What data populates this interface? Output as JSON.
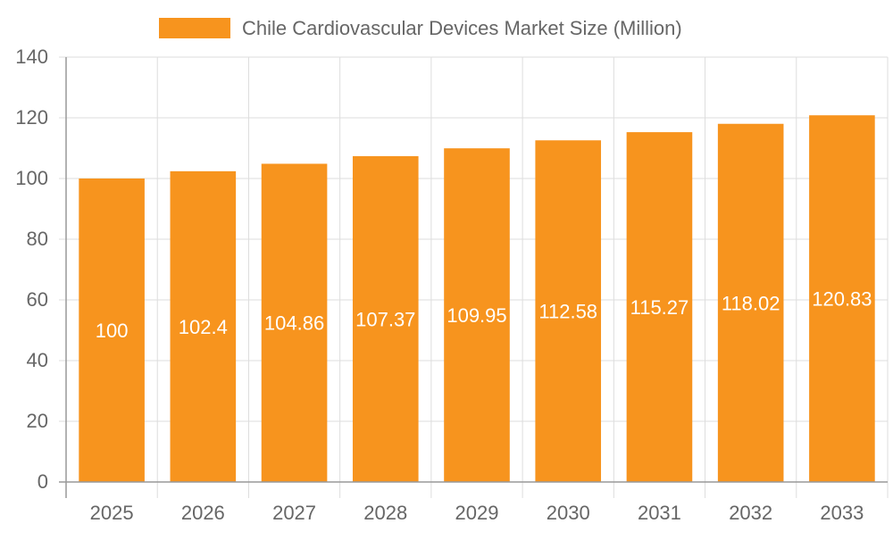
{
  "chart_data": {
    "type": "bar",
    "title": "",
    "xlabel": "",
    "ylabel": "",
    "categories": [
      "2025",
      "2026",
      "2027",
      "2028",
      "2029",
      "2030",
      "2031",
      "2032",
      "2033"
    ],
    "series": [
      {
        "name": "Chile Cardiovascular Devices Market Size (Million)",
        "values": [
          100,
          102.4,
          104.86,
          107.37,
          109.95,
          112.58,
          115.27,
          118.02,
          120.83
        ],
        "color": "#F7941E"
      }
    ],
    "ylim": [
      0,
      140
    ],
    "yticks": [
      0,
      20,
      40,
      60,
      80,
      100,
      120,
      140
    ],
    "grid": true,
    "legend": "top-center",
    "data_labels": true
  }
}
